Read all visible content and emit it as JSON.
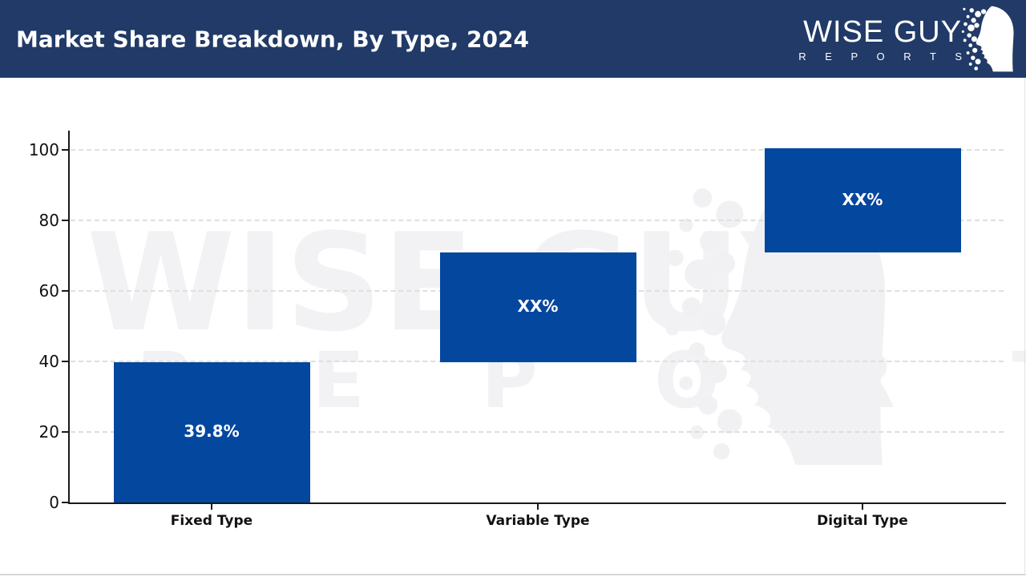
{
  "header": {
    "title": "Market Share Breakdown, By Type, 2024",
    "logo": {
      "brand_top": "WISE GUY",
      "brand_bottom": "R E P O R T S"
    }
  },
  "watermark": {
    "line1": "WISE GUY",
    "line2": "R E P O R T S"
  },
  "chart_data": {
    "type": "bar",
    "subtype": "floating-segment-bars",
    "title": "Market Share Breakdown, By Type, 2024",
    "categories": [
      "Fixed Type",
      "Variable Type",
      "Digital Type"
    ],
    "bars": [
      {
        "category": "Fixed Type",
        "start": 0,
        "end": 39.8,
        "label": "39.8%"
      },
      {
        "category": "Variable Type",
        "start": 39.8,
        "end": 71,
        "label": "XX%"
      },
      {
        "category": "Digital Type",
        "start": 71,
        "end": 100.5,
        "label": "XX%"
      }
    ],
    "xlabel": "",
    "ylabel": "",
    "ylim": [
      0,
      100
    ],
    "yticks": [
      0,
      20,
      40,
      60,
      80,
      100
    ],
    "grid": "horizontal-dashed",
    "legend": "none"
  },
  "colors": {
    "header_bg": "#213A67",
    "bar_fill": "#04479E",
    "bar_label": "#FFFFFF",
    "axis": "#1A1A1A",
    "gridline": "#DEDEDE",
    "watermark": "#F2F2F4",
    "background": "#FFFFFF"
  }
}
